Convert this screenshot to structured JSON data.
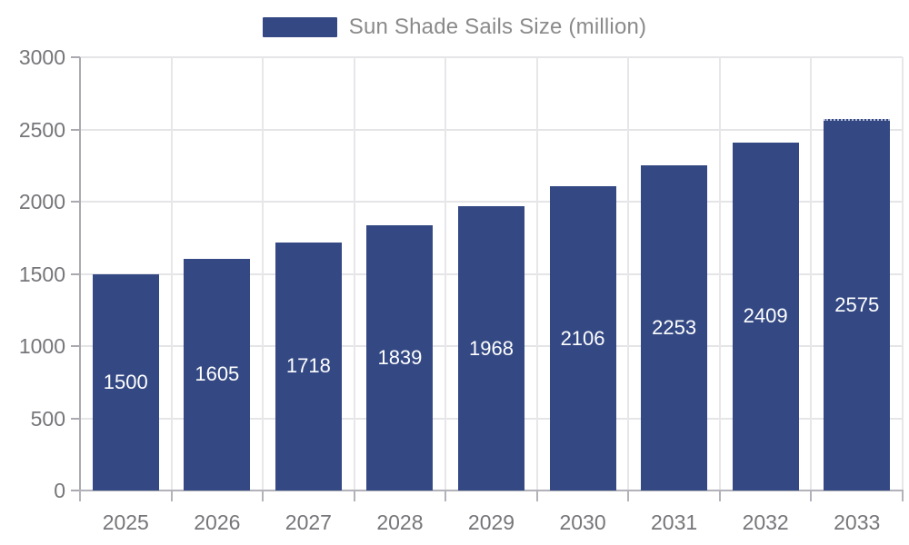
{
  "legend": {
    "label": "Sun Shade Sails Size (million)"
  },
  "chart_data": {
    "type": "bar",
    "title": "Sun Shade Sails Size (million)",
    "series_name": "Sun Shade Sails Size (million)",
    "categories": [
      "2025",
      "2026",
      "2027",
      "2028",
      "2029",
      "2030",
      "2031",
      "2032",
      "2033"
    ],
    "values": [
      1500,
      1605,
      1718,
      1839,
      1968,
      2106,
      2253,
      2409,
      2575
    ],
    "xlabel": "",
    "ylabel": "",
    "ylim": [
      0,
      3000
    ],
    "yticks": [
      0,
      500,
      1000,
      1500,
      2000,
      2500,
      3000
    ],
    "grid": "horizontal and vertical gridlines on",
    "legend_position": "top-center",
    "value_labels": "white, centered inside bars",
    "colors": {
      "bar": "#344984",
      "value_label": "#ffffff",
      "axis_label": "#76767a",
      "legend_text": "#8a8a8a",
      "gridline": "#e5e5e8",
      "axis_line": "#b2b2ba",
      "background": "#ffffff"
    }
  }
}
